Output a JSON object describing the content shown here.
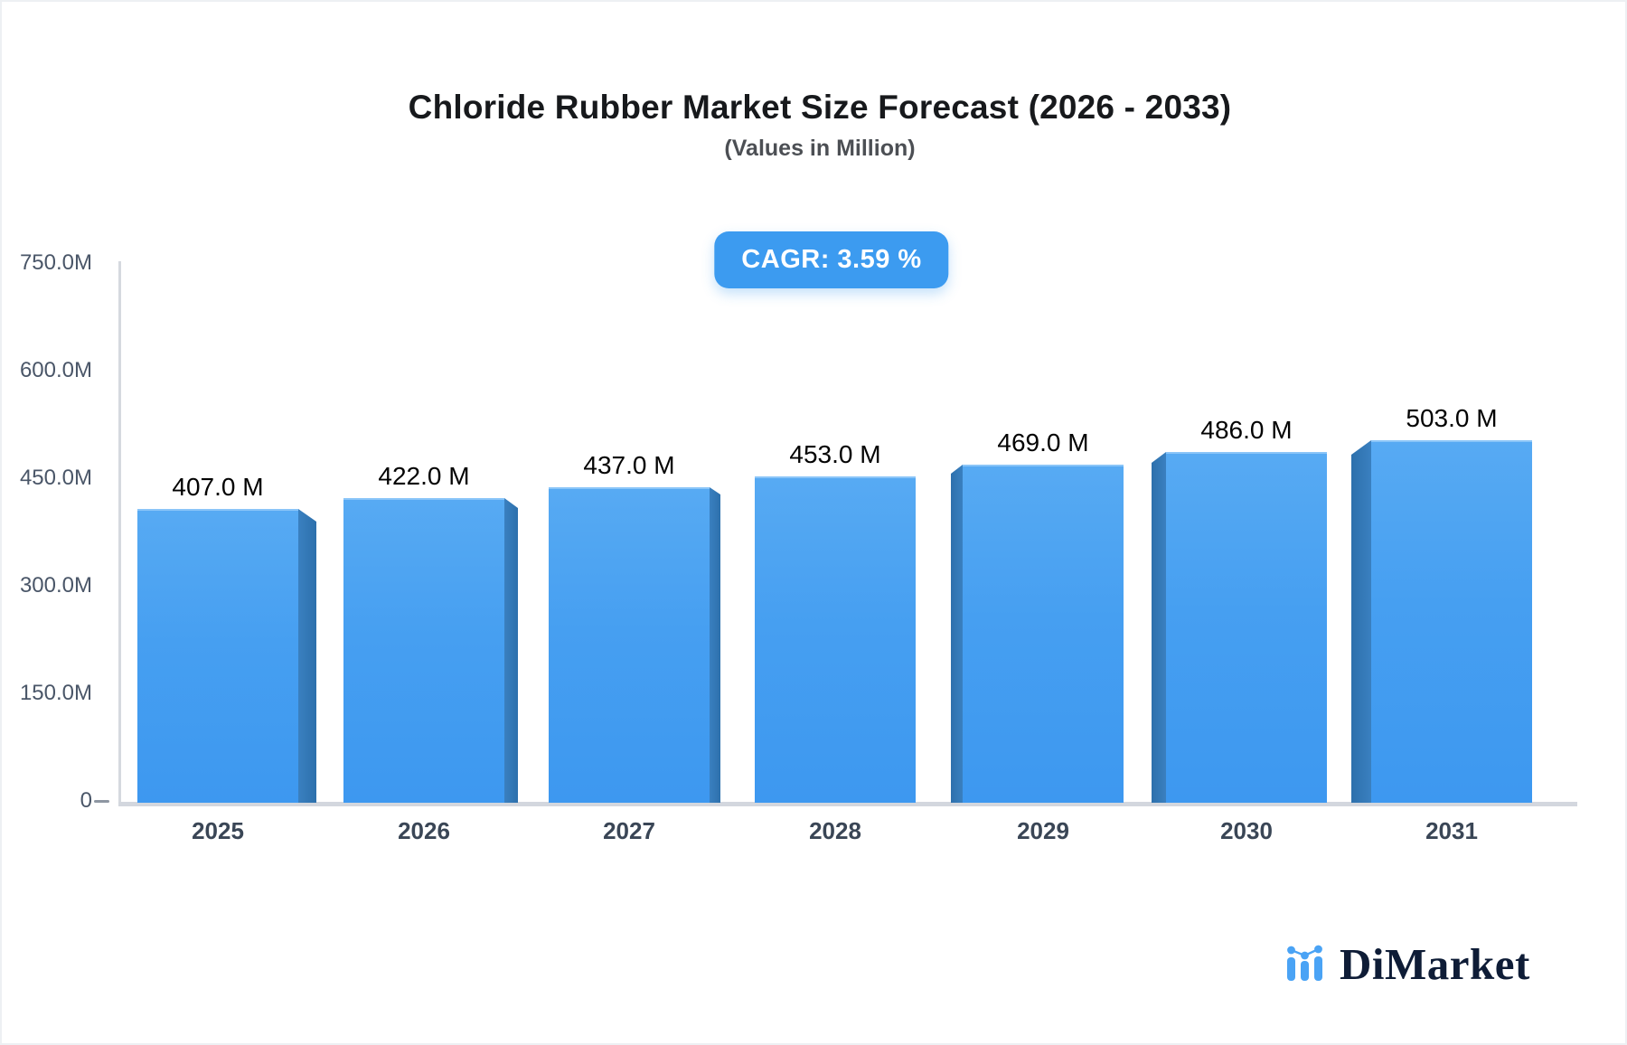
{
  "title": "Chloride Rubber Market Size Forecast (2026 - 2033)",
  "subtitle": "(Values in Million)",
  "badge": {
    "label": "CAGR: 3.59 %"
  },
  "watermark": {
    "brand": "DiMarket",
    "icon": "bar-chart-logo-icon"
  },
  "chart_data": {
    "type": "bar",
    "title": "Chloride Rubber Market Size Forecast (2026 - 2033)",
    "subtitle": "(Values in Million)",
    "unit": "Million",
    "categories": [
      "2025",
      "2026",
      "2027",
      "2028",
      "2029",
      "2030",
      "2031"
    ],
    "values": [
      407,
      422,
      437,
      453,
      469,
      486,
      503
    ],
    "value_labels": [
      "407.0 M",
      "422.0 M",
      "437.0 M",
      "453.0 M",
      "469.0 M",
      "486.0 M",
      "503.0 M"
    ],
    "yticks": {
      "labels": [
        "750.0M",
        "600.0M",
        "450.0M",
        "300.0M",
        "150.0M",
        "0"
      ],
      "values": [
        750,
        600,
        450,
        300,
        150,
        0
      ]
    },
    "ylim": [
      0,
      750
    ],
    "xlabel": "",
    "ylabel": "",
    "grid": false,
    "legend": false,
    "cagr": "3.59 %",
    "colors": {
      "bar_face_top": "#57aaf3",
      "bar_face_bottom": "#3d98f0",
      "bar_side": "#2d70ac",
      "bar_top_highlight": "#8ac5f8",
      "badge_background": "#3c9bf0",
      "badge_text": "#ffffff",
      "axis_line": "#d5d9df",
      "tick_text": "#4a5668",
      "brand_icon": "#4aa3f5",
      "brand_text": "#0e1c36"
    }
  }
}
